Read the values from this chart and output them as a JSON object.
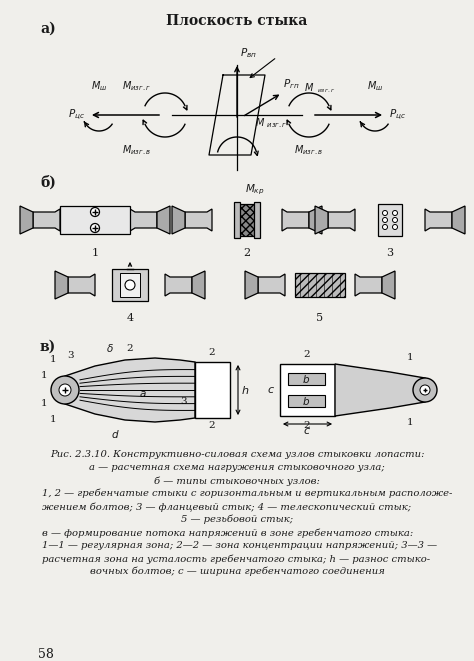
{
  "page_bg": "#f0efeb",
  "fig_bg": "#f0efeb",
  "text_color": "#1a1a1a",
  "title_a": "а)",
  "title_b": "б)",
  "title_v": "в)",
  "section_a_title": "Плоскость стыка",
  "caption_line1": "Рис. 2.3.10. Конструктивно-силовая схема узлов стыковки лопасти:",
  "caption_line2": "а — расчетная схема нагружения стыковочного узла;",
  "caption_line3": "б — типы стыковочных узлов:",
  "caption_line4": "1, 2 — гребенчатые стыки с горизонтальным и вертикальным расположе-",
  "caption_line5": "жением болтов; 3 — фланцевый стык; 4 — телескопический стык;",
  "caption_line6": "5 — резьбовой стык;",
  "caption_line7": "в — формирование потока напряжений в зоне гребенчатого стыка:",
  "caption_line8": "1—1 — регулярная зона; 2—2 — зона концентрации напряжений; 3—3 —",
  "caption_line9": "расчетная зона на усталость гребенчатого стыка; h — разнос стыко-",
  "caption_line10": "вочных болтов; с — ширина гребенчатого соединения",
  "page_number": "58"
}
